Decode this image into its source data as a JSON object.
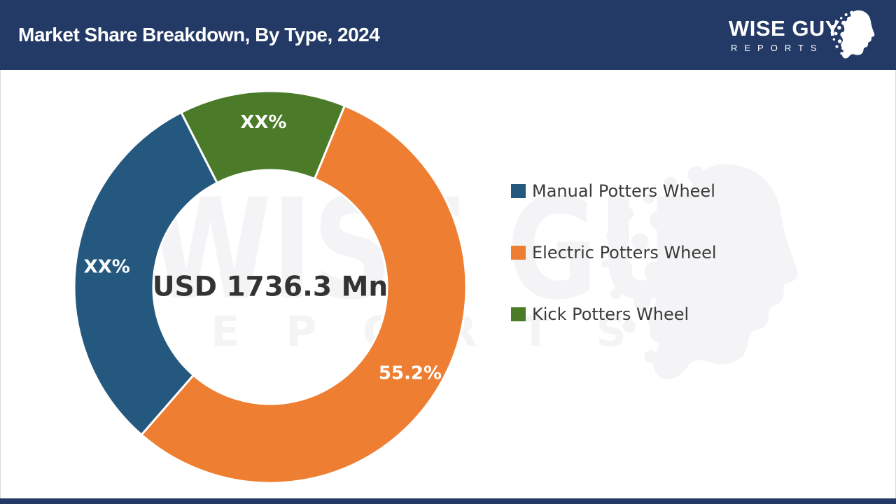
{
  "header": {
    "title": "Market Share Breakdown, By Type, 2024",
    "logo_line1": "WISE GUY",
    "logo_line2": "REPORTS"
  },
  "watermark": {
    "line1": "WISE GUY",
    "line2": "REPORTS"
  },
  "chart_data": {
    "type": "donut",
    "title": "Market Share Breakdown, By Type, 2024",
    "center_label": "USD 1736.3 Mn",
    "start_angle_deg": 117,
    "direction": "counterclockwise",
    "hole_radius_ratio": 0.6,
    "legend_position": "right",
    "segments": [
      {
        "label": "Manual Potters Wheel",
        "display_pct": "XX%",
        "value_pct": 31.1,
        "color": "#25587E"
      },
      {
        "label": "Electric Potters Wheel",
        "display_pct": "55.2%",
        "value_pct": 55.2,
        "color": "#EE7E32"
      },
      {
        "label": "Kick Potters Wheel",
        "display_pct": "XX%",
        "value_pct": 13.7,
        "color": "#4B7A28"
      }
    ]
  },
  "colors": {
    "header_bg": "#233A66",
    "watermark": "#F4F4F6",
    "legend_text": "#3A3A3A",
    "center_text": "#333333",
    "segment_gap": "#FFFFFF"
  }
}
